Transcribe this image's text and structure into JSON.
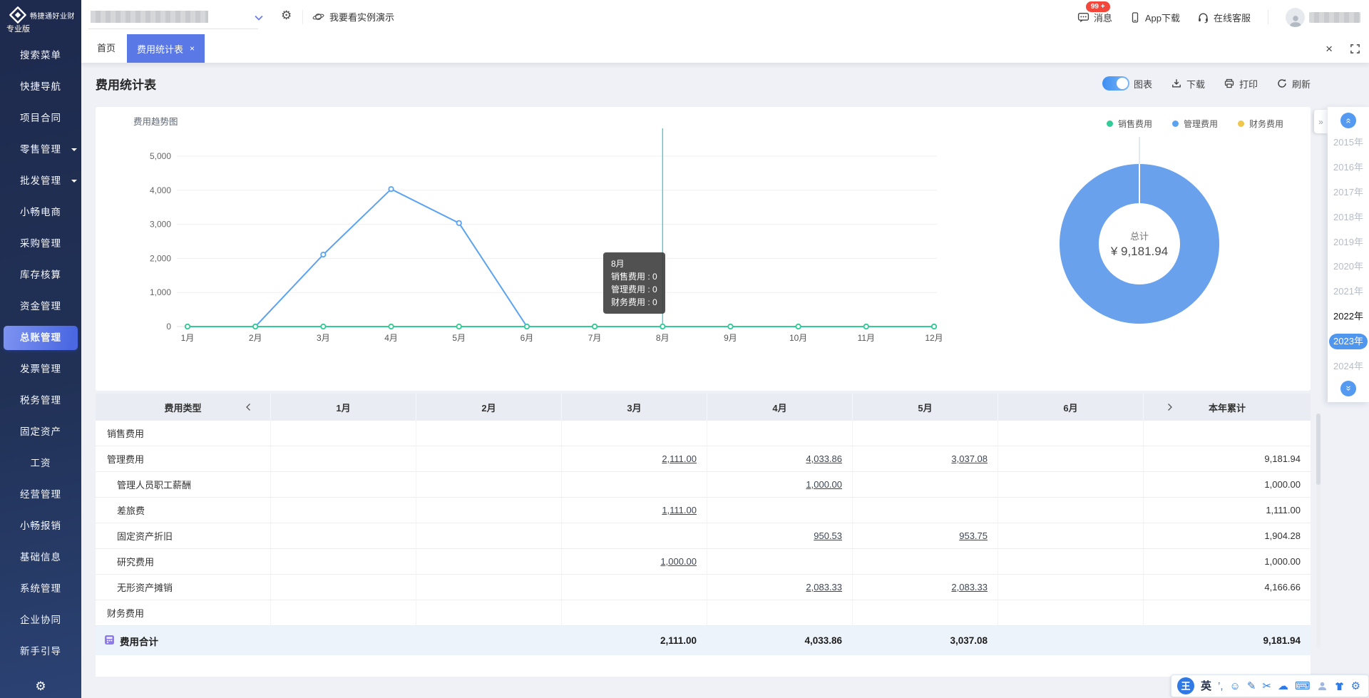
{
  "app": {
    "name": "畅捷通好业财",
    "edition": "专业版"
  },
  "topbar": {
    "demo_text": "我要看实例演示",
    "messages": "消息",
    "badge": "99 +",
    "app_download": "App下载",
    "support": "在线客服"
  },
  "icons": {
    "gear": "⚙",
    "close": "×",
    "panel_collapse": "»"
  },
  "sidebar": {
    "items": [
      {
        "label": "搜索菜单"
      },
      {
        "label": "快捷导航"
      },
      {
        "label": "项目合同"
      },
      {
        "label": "零售管理",
        "expandable": true
      },
      {
        "label": "批发管理",
        "expandable": true
      },
      {
        "label": "小畅电商"
      },
      {
        "label": "采购管理"
      },
      {
        "label": "库存核算"
      },
      {
        "label": "资金管理"
      },
      {
        "label": "总账管理",
        "active": true
      },
      {
        "label": "发票管理"
      },
      {
        "label": "税务管理"
      },
      {
        "label": "固定资产"
      },
      {
        "label": "工资"
      },
      {
        "label": "经营管理"
      },
      {
        "label": "小畅报销"
      },
      {
        "label": "基础信息"
      },
      {
        "label": "系统管理"
      },
      {
        "label": "企业协同"
      },
      {
        "label": "新手引导"
      }
    ]
  },
  "tabs": [
    {
      "label": "首页",
      "active": false
    },
    {
      "label": "费用统计表",
      "active": true,
      "closable": true
    }
  ],
  "page": {
    "title": "费用统计表",
    "toolbar": {
      "chart_toggle_label": "图表",
      "download_label": "下载",
      "print_label": "打印",
      "refresh_label": "刷新"
    }
  },
  "chart_data": [
    {
      "type": "line",
      "title": "费用趋势图",
      "x": [
        "1月",
        "2月",
        "3月",
        "4月",
        "5月",
        "6月",
        "7月",
        "8月",
        "9月",
        "10月",
        "11月",
        "12月"
      ],
      "series": [
        {
          "name": "销售费用",
          "color": "#33cc99",
          "values": [
            0,
            0,
            0,
            0,
            0,
            0,
            0,
            0,
            0,
            0,
            0,
            0
          ]
        },
        {
          "name": "管理费用",
          "color": "#5ba3f0",
          "values": [
            0,
            0,
            2111.0,
            4033.86,
            3037.08,
            0,
            0,
            0,
            0,
            0,
            0,
            0
          ]
        },
        {
          "name": "财务费用",
          "color": "#eec64c",
          "values": [
            0,
            0,
            0,
            0,
            0,
            0,
            0,
            0,
            0,
            0,
            0,
            0
          ]
        }
      ],
      "ylim": [
        0,
        5000
      ],
      "yticks": [
        "0",
        "1,000",
        "2,000",
        "3,000",
        "4,000",
        "5,000"
      ],
      "grid": true,
      "legend_position": "top-right",
      "tooltip": {
        "x_index": 7,
        "title": "8月",
        "items": [
          {
            "name": "销售费用",
            "value": "0"
          },
          {
            "name": "管理费用",
            "value": "0"
          },
          {
            "name": "财务费用",
            "value": "0"
          }
        ]
      }
    },
    {
      "type": "pie",
      "donut": true,
      "slices": [
        {
          "name": "管理费用",
          "value": 9181.94,
          "color": "#6aa1ed"
        }
      ],
      "center_label": "总计",
      "center_value": "¥ 9,181.94"
    }
  ],
  "years": {
    "items": [
      "2015年",
      "2016年",
      "2017年",
      "2018年",
      "2019年",
      "2020年",
      "2021年",
      "2022年",
      "2023年",
      "2024年"
    ],
    "selected": "2023年",
    "current": "2022年"
  },
  "table": {
    "headers": {
      "category": "费用类型",
      "months": [
        "1月",
        "2月",
        "3月",
        "4月",
        "5月",
        "6月"
      ],
      "total": "本年累计"
    },
    "rows": [
      {
        "label": "销售费用",
        "indent": 0,
        "cells": [
          null,
          null,
          null,
          null,
          null,
          null
        ],
        "total": null
      },
      {
        "label": "管理费用",
        "indent": 0,
        "cells": [
          null,
          null,
          {
            "v": "2,111.00",
            "link": true
          },
          {
            "v": "4,033.86",
            "link": true
          },
          {
            "v": "3,037.08",
            "link": true
          },
          null
        ],
        "total": {
          "v": "9,181.94"
        }
      },
      {
        "label": "管理人员职工薪酬",
        "indent": 1,
        "cells": [
          null,
          null,
          null,
          {
            "v": "1,000.00",
            "link": true
          },
          null,
          null
        ],
        "total": {
          "v": "1,000.00"
        }
      },
      {
        "label": "差旅费",
        "indent": 1,
        "cells": [
          null,
          null,
          {
            "v": "1,111.00",
            "link": true
          },
          null,
          null,
          null
        ],
        "total": {
          "v": "1,111.00"
        }
      },
      {
        "label": "固定资产折旧",
        "indent": 1,
        "cells": [
          null,
          null,
          null,
          {
            "v": "950.53",
            "link": true
          },
          {
            "v": "953.75",
            "link": true
          },
          null
        ],
        "total": {
          "v": "1,904.28"
        }
      },
      {
        "label": "研究费用",
        "indent": 1,
        "cells": [
          null,
          null,
          {
            "v": "1,000.00",
            "link": true
          },
          null,
          null,
          null
        ],
        "total": {
          "v": "1,000.00"
        }
      },
      {
        "label": "无形资产摊销",
        "indent": 1,
        "cells": [
          null,
          null,
          null,
          {
            "v": "2,083.33",
            "link": true
          },
          {
            "v": "2,083.33",
            "link": true
          },
          null
        ],
        "total": {
          "v": "4,166.66"
        }
      },
      {
        "label": "财务费用",
        "indent": 0,
        "cells": [
          null,
          null,
          null,
          null,
          null,
          null
        ],
        "total": null
      }
    ],
    "total_row": {
      "label": "费用合计",
      "cells": [
        "",
        "",
        "2,111.00",
        "4,033.86",
        "3,037.08",
        ""
      ],
      "total": "9,181.94"
    }
  },
  "ime": {
    "items": [
      {
        "name": "ime-logo-icon",
        "glyph": "王",
        "style": "logo"
      },
      {
        "name": "ime-english-mode-icon",
        "glyph": "英",
        "style": "dark"
      },
      {
        "name": "ime-punctuation-icon",
        "glyph": "’,",
        "style": "blue"
      },
      {
        "name": "ime-emoji-icon",
        "glyph": "☺",
        "style": "blue"
      },
      {
        "name": "ime-handwriting-icon",
        "glyph": "✎",
        "style": "blue"
      },
      {
        "name": "ime-clipboard-icon",
        "glyph": "✂",
        "style": "blue"
      },
      {
        "name": "ime-cloud-icon",
        "glyph": "☁",
        "style": "blue"
      },
      {
        "name": "ime-keyboard-icon",
        "glyph": "⌨",
        "style": "blue"
      },
      {
        "name": "ime-user-icon",
        "svg": "person"
      },
      {
        "name": "ime-skin-icon",
        "svg": "shirt"
      },
      {
        "name": "ime-settings-icon",
        "glyph": "⚙",
        "style": "blue"
      }
    ]
  }
}
